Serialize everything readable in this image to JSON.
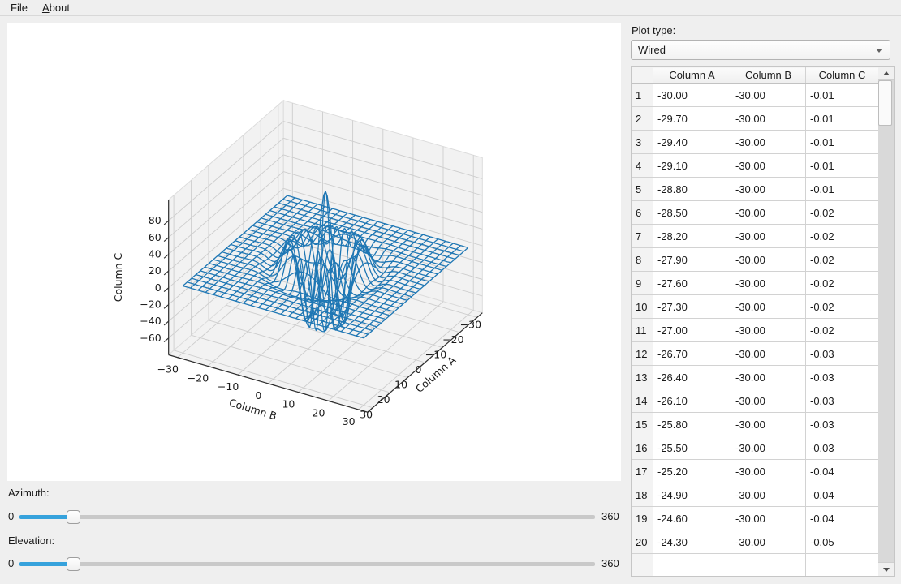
{
  "menu": {
    "items": [
      {
        "label": "File"
      },
      {
        "label": "About"
      }
    ]
  },
  "right_panel": {
    "plot_type_label": "Plot type:",
    "plot_type_selected": "Wired",
    "table": {
      "columns": [
        "Column A",
        "Column B",
        "Column C"
      ],
      "rows": [
        [
          "1",
          "-30.00",
          "-30.00",
          "-0.01"
        ],
        [
          "2",
          "-29.70",
          "-30.00",
          "-0.01"
        ],
        [
          "3",
          "-29.40",
          "-30.00",
          "-0.01"
        ],
        [
          "4",
          "-29.10",
          "-30.00",
          "-0.01"
        ],
        [
          "5",
          "-28.80",
          "-30.00",
          "-0.01"
        ],
        [
          "6",
          "-28.50",
          "-30.00",
          "-0.02"
        ],
        [
          "7",
          "-28.20",
          "-30.00",
          "-0.02"
        ],
        [
          "8",
          "-27.90",
          "-30.00",
          "-0.02"
        ],
        [
          "9",
          "-27.60",
          "-30.00",
          "-0.02"
        ],
        [
          "10",
          "-27.30",
          "-30.00",
          "-0.02"
        ],
        [
          "11",
          "-27.00",
          "-30.00",
          "-0.02"
        ],
        [
          "12",
          "-26.70",
          "-30.00",
          "-0.03"
        ],
        [
          "13",
          "-26.40",
          "-30.00",
          "-0.03"
        ],
        [
          "14",
          "-26.10",
          "-30.00",
          "-0.03"
        ],
        [
          "15",
          "-25.80",
          "-30.00",
          "-0.03"
        ],
        [
          "16",
          "-25.50",
          "-30.00",
          "-0.03"
        ],
        [
          "17",
          "-25.20",
          "-30.00",
          "-0.04"
        ],
        [
          "18",
          "-24.90",
          "-30.00",
          "-0.04"
        ],
        [
          "19",
          "-24.60",
          "-30.00",
          "-0.04"
        ],
        [
          "20",
          "-24.30",
          "-30.00",
          "-0.05"
        ]
      ]
    }
  },
  "controls": {
    "azimuth": {
      "label": "Azimuth:",
      "min": "0",
      "max": "360",
      "handle_percent": 9.3
    },
    "elevation": {
      "label": "Elevation:",
      "min": "0",
      "max": "360",
      "handle_percent": 9.3
    },
    "slider_fill_color": "#36a2dc"
  },
  "chart_data": {
    "type": "wireframe",
    "xlabel": "Column A",
    "ylabel": "Column B",
    "zlabel": "Column C",
    "x_ticks": [
      -30,
      -20,
      -10,
      0,
      10,
      20,
      30
    ],
    "y_ticks": [
      -30,
      -20,
      -10,
      0,
      10,
      20,
      30
    ],
    "z_ticks": [
      -60,
      -40,
      -20,
      0,
      20,
      40,
      60,
      80
    ],
    "x_range": [
      -30,
      30
    ],
    "y_range": [
      -30,
      30
    ],
    "xy_axis_limits": [
      -33,
      33
    ],
    "z_axis_limits": [
      -80,
      105
    ],
    "view": {
      "azim_deg": 30,
      "elev_deg": 30
    },
    "wire_color": "#1f77b4",
    "grid_on": true,
    "grid_step": 2.5,
    "sample_step": 0.6,
    "surface_model": {
      "form": "z = A * cos(k*r) * exp(-(r/sigma)^2),  r = sqrt(x^2 + y^2)",
      "A": 90,
      "k": 0.55,
      "sigma": 10
    },
    "pane_color": "#f2f2f2",
    "grid_line_color": "#cdcdcd",
    "spine_color": "#2e2e2e"
  }
}
